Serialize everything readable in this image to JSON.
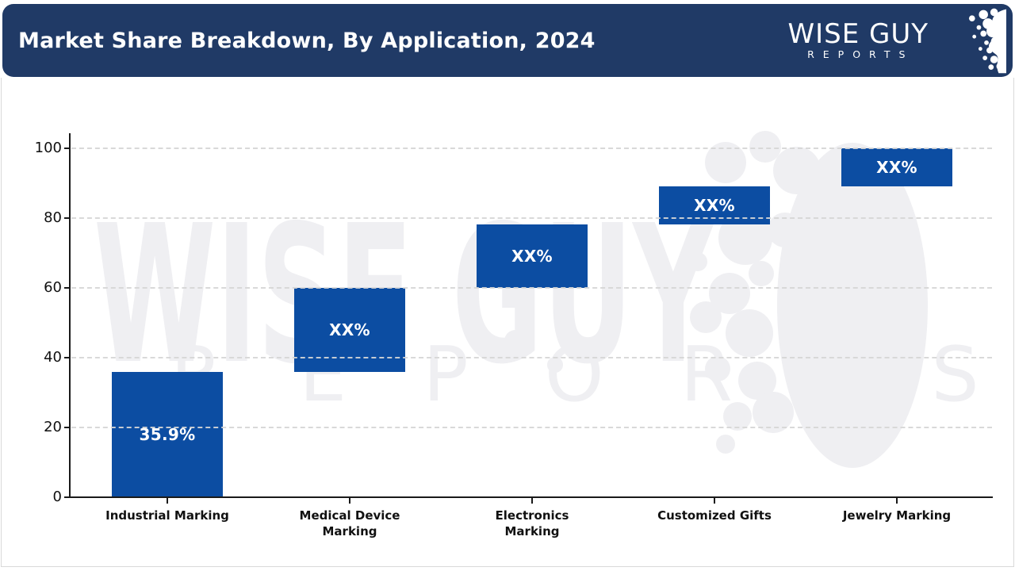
{
  "header": {
    "title": "Market Share Breakdown, By Application, 2024",
    "bg_color": "#203a66",
    "logo": {
      "line1": "WISE GUY",
      "line2": "REPORTS"
    }
  },
  "watermark": {
    "line1": "WISE GUY",
    "line2": "R E P O R T S"
  },
  "chart_data": {
    "type": "bar",
    "subtype": "floating-waterfall",
    "title": "Market Share Breakdown, By Application, 2024",
    "categories": [
      "Industrial Marking",
      "Medical Device Marking",
      "Electronics Marking",
      "Customized Gifts",
      "Jewelry Marking"
    ],
    "category_lines": [
      [
        "Industrial Marking"
      ],
      [
        "Medical Device",
        "Marking"
      ],
      [
        "Electronics",
        "Marking"
      ],
      [
        "Customized Gifts"
      ],
      [
        "Jewelry Marking"
      ]
    ],
    "bars": [
      {
        "category": "Industrial Marking",
        "from": 0,
        "to": 35.9,
        "label": "35.9%"
      },
      {
        "category": "Medical Device Marking",
        "from": 35.9,
        "to": 60,
        "label": "XX%"
      },
      {
        "category": "Electronics Marking",
        "from": 60,
        "to": 78.2,
        "label": "XX%"
      },
      {
        "category": "Customized Gifts",
        "from": 78.2,
        "to": 89.2,
        "label": "XX%"
      },
      {
        "category": "Jewelry Marking",
        "from": 89.2,
        "to": 100,
        "label": "XX%"
      }
    ],
    "ylim": [
      0,
      100
    ],
    "yticks": [
      0,
      20,
      40,
      60,
      80,
      100
    ],
    "xlabel": "",
    "ylabel": "",
    "grid": "horizontal-dashed",
    "legend": "none",
    "bar_color": "#0c4da2"
  }
}
